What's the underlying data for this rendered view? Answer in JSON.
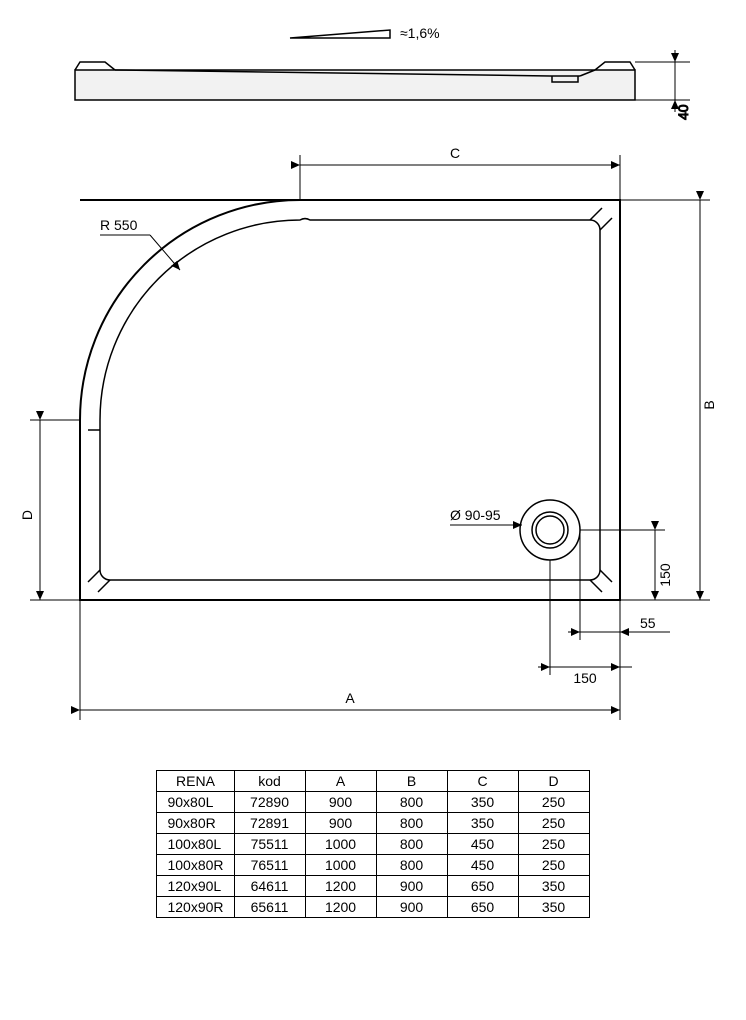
{
  "slope_label": "≈1,6%",
  "side_height": "40",
  "radius_label": "R 550",
  "drain_label": "Ø 90-95",
  "dims": {
    "A": "A",
    "B": "B",
    "C": "C",
    "D": "D"
  },
  "offsets": {
    "right_55": "55",
    "bottom_150": "150",
    "drain_150": "150"
  },
  "colors": {
    "stroke": "#000000",
    "fill": "#ffffff",
    "tray_fill": "#f2f2f2",
    "bg": "#ffffff"
  },
  "line_width": 1.5,
  "table": {
    "headers": [
      "RENA",
      "kod",
      "A",
      "B",
      "C",
      "D"
    ],
    "rows": [
      [
        "90x80L",
        "72890",
        "900",
        "800",
        "350",
        "250"
      ],
      [
        "90x80R",
        "72891",
        "900",
        "800",
        "350",
        "250"
      ],
      [
        "100x80L",
        "75511",
        "1000",
        "800",
        "450",
        "250"
      ],
      [
        "100x80R",
        "76511",
        "1000",
        "800",
        "450",
        "250"
      ],
      [
        "120x90L",
        "64611",
        "1200",
        "900",
        "650",
        "350"
      ],
      [
        "120x90R",
        "65611",
        "1200",
        "900",
        "650",
        "350"
      ]
    ]
  }
}
